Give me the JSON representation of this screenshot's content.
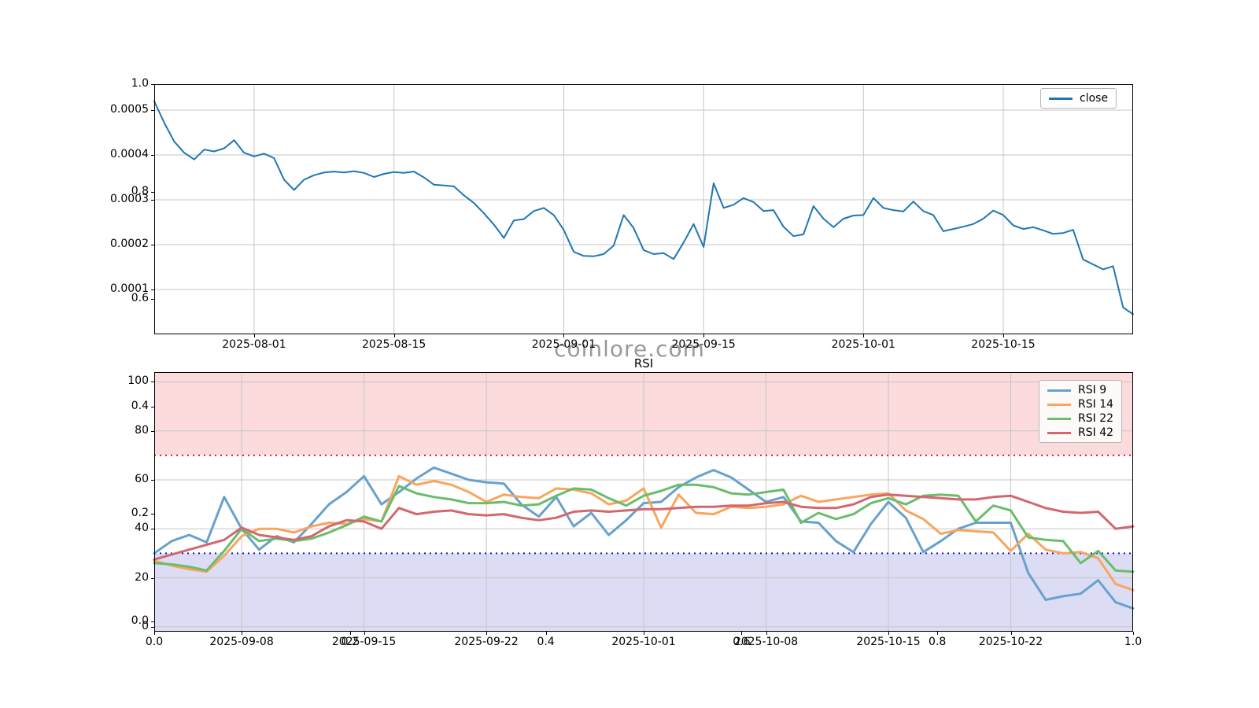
{
  "watermark": "coinlore.com",
  "colors": {
    "close": "#1f77b4",
    "rsi9": "#68a1cc",
    "rsi14": "#f8a55f",
    "rsi22": "#69bd6b",
    "rsi42": "#d2686e",
    "overbought_line": "#dc143c",
    "oversold_line": "#1414c8",
    "overbought_band": "#fbdbdb",
    "oversold_band": "#dddcf5",
    "grid": "#c6c6c6",
    "watermark_color": "#808080"
  },
  "overlay_axis": {
    "xticks": [
      "0.0",
      "0.2",
      "0.4",
      "0.6",
      "0.8",
      "1.0"
    ],
    "yticks": [
      "1.0",
      "0.8",
      "0.6",
      "0.4",
      "0.2",
      "0.0"
    ]
  },
  "chart_data": [
    {
      "type": "line",
      "title": "",
      "legend_position": "upper right",
      "grid": true,
      "ylim": [
        0,
        0.000558
      ],
      "yticks": [
        {
          "label": "0.0001",
          "v": 0.0001
        },
        {
          "label": "0.0002",
          "v": 0.0002
        },
        {
          "label": "0.0003",
          "v": 0.0003
        },
        {
          "label": "0.0004",
          "v": 0.0004
        },
        {
          "label": "0.0005",
          "v": 0.0005
        }
      ],
      "xticks": [
        {
          "label": "2025-08-01",
          "i": 10
        },
        {
          "label": "2025-08-15",
          "i": 24
        },
        {
          "label": "2025-09-01",
          "i": 41
        },
        {
          "label": "2025-09-15",
          "i": 55
        },
        {
          "label": "2025-10-01",
          "i": 71
        },
        {
          "label": "2025-10-15",
          "i": 85
        }
      ],
      "dates": [
        "2025-07-22",
        "2025-07-23",
        "2025-07-24",
        "2025-07-25",
        "2025-07-26",
        "2025-07-27",
        "2025-07-28",
        "2025-07-29",
        "2025-07-30",
        "2025-07-31",
        "2025-08-01",
        "2025-08-02",
        "2025-08-03",
        "2025-08-04",
        "2025-08-05",
        "2025-08-06",
        "2025-08-07",
        "2025-08-08",
        "2025-08-09",
        "2025-08-10",
        "2025-08-11",
        "2025-08-12",
        "2025-08-13",
        "2025-08-14",
        "2025-08-15",
        "2025-08-16",
        "2025-08-17",
        "2025-08-18",
        "2025-08-19",
        "2025-08-20",
        "2025-08-21",
        "2025-08-22",
        "2025-08-23",
        "2025-08-24",
        "2025-08-25",
        "2025-08-26",
        "2025-08-27",
        "2025-08-28",
        "2025-08-29",
        "2025-08-30",
        "2025-08-31",
        "2025-09-01",
        "2025-09-02",
        "2025-09-03",
        "2025-09-04",
        "2025-09-05",
        "2025-09-06",
        "2025-09-07",
        "2025-09-08",
        "2025-09-09",
        "2025-09-10",
        "2025-09-11",
        "2025-09-12",
        "2025-09-13",
        "2025-09-14",
        "2025-09-15",
        "2025-09-16",
        "2025-09-17",
        "2025-09-18",
        "2025-09-19",
        "2025-09-20",
        "2025-09-21",
        "2025-09-22",
        "2025-09-23",
        "2025-09-24",
        "2025-09-25",
        "2025-09-26",
        "2025-09-27",
        "2025-09-28",
        "2025-09-29",
        "2025-09-30",
        "2025-10-01",
        "2025-10-02",
        "2025-10-03",
        "2025-10-04",
        "2025-10-05",
        "2025-10-06",
        "2025-10-07",
        "2025-10-08",
        "2025-10-09",
        "2025-10-10",
        "2025-10-11",
        "2025-10-12",
        "2025-10-13",
        "2025-10-14",
        "2025-10-15",
        "2025-10-16",
        "2025-10-17",
        "2025-10-18",
        "2025-10-19",
        "2025-10-20",
        "2025-10-21",
        "2025-10-22",
        "2025-10-23",
        "2025-10-24",
        "2025-10-25",
        "2025-10-26",
        "2025-10-27",
        "2025-10-28"
      ],
      "series": [
        {
          "name": "close",
          "color": "#1f77b4",
          "width": 2,
          "values": [
            0.00052,
            0.000472,
            0.00043,
            0.000405,
            0.00039,
            0.000412,
            0.000408,
            0.000415,
            0.000433,
            0.000405,
            0.000397,
            0.000403,
            0.000393,
            0.000345,
            0.000322,
            0.000345,
            0.000355,
            0.000361,
            0.000363,
            0.000361,
            0.000364,
            0.00036,
            0.000351,
            0.000358,
            0.000362,
            0.00036,
            0.000363,
            0.00035,
            0.000334,
            0.000332,
            0.00033,
            0.00031,
            0.000293,
            0.00027,
            0.000245,
            0.000215,
            0.000254,
            0.000257,
            0.000275,
            0.000282,
            0.000266,
            0.000233,
            0.000184,
            0.000175,
            0.000174,
            0.000179,
            0.000198,
            0.000266,
            0.000237,
            0.000188,
            0.000179,
            0.000181,
            0.000168,
            0.000205,
            0.000246,
            0.000195,
            0.000337,
            0.000282,
            0.000289,
            0.000304,
            0.000295,
            0.000275,
            0.000277,
            0.00024,
            0.000219,
            0.000223,
            0.000286,
            0.000258,
            0.000239,
            0.000258,
            0.000265,
            0.000266,
            0.000304,
            0.000282,
            0.000277,
            0.000274,
            0.000296,
            0.000275,
            0.000266,
            0.00023,
            0.000235,
            0.00024,
            0.000246,
            0.000258,
            0.000276,
            0.000266,
            0.000243,
            0.000235,
            0.000239,
            0.000232,
            0.000224,
            0.000226,
            0.000233,
            0.000167,
            0.000156,
            0.000145,
            0.000152,
            6e-05,
            4.5e-05
          ]
        }
      ]
    },
    {
      "type": "line",
      "title": "RSI",
      "legend_position": "upper right",
      "grid": true,
      "ylim": [
        -2,
        104
      ],
      "hlines": [
        {
          "v": 70,
          "style": "dotted",
          "color": "#dc143c",
          "meaning": "overbought"
        },
        {
          "v": 30,
          "style": "dotted",
          "color": "#1414c8",
          "meaning": "oversold"
        }
      ],
      "bands": [
        {
          "from": 70,
          "to": 104,
          "color": "#fbdbdb"
        },
        {
          "from": -2,
          "to": 30,
          "color": "#dddcf5"
        }
      ],
      "yticks": [
        {
          "label": "0",
          "v": 0
        },
        {
          "label": "20",
          "v": 20
        },
        {
          "label": "40",
          "v": 40
        },
        {
          "label": "60",
          "v": 60
        },
        {
          "label": "80",
          "v": 80
        },
        {
          "label": "100",
          "v": 100
        }
      ],
      "xticks": [
        {
          "label": "2025-09-08",
          "i": 5
        },
        {
          "label": "2025-09-15",
          "i": 12
        },
        {
          "label": "2025-09-22",
          "i": 19
        },
        {
          "label": "2025-10-01",
          "i": 28
        },
        {
          "label": "2025-10-08",
          "i": 35
        },
        {
          "label": "2025-10-15",
          "i": 42
        },
        {
          "label": "2025-10-22",
          "i": 49
        }
      ],
      "dates": [
        "2025-09-03",
        "2025-09-04",
        "2025-09-05",
        "2025-09-06",
        "2025-09-07",
        "2025-09-08",
        "2025-09-09",
        "2025-09-10",
        "2025-09-11",
        "2025-09-12",
        "2025-09-13",
        "2025-09-14",
        "2025-09-15",
        "2025-09-16",
        "2025-09-17",
        "2025-09-18",
        "2025-09-19",
        "2025-09-20",
        "2025-09-21",
        "2025-09-22",
        "2025-09-23",
        "2025-09-24",
        "2025-09-25",
        "2025-09-26",
        "2025-09-27",
        "2025-09-28",
        "2025-09-29",
        "2025-09-30",
        "2025-10-01",
        "2025-10-02",
        "2025-10-03",
        "2025-10-04",
        "2025-10-05",
        "2025-10-06",
        "2025-10-07",
        "2025-10-08",
        "2025-10-09",
        "2025-10-10",
        "2025-10-11",
        "2025-10-12",
        "2025-10-13",
        "2025-10-14",
        "2025-10-15",
        "2025-10-16",
        "2025-10-17",
        "2025-10-18",
        "2025-10-19",
        "2025-10-20",
        "2025-10-21",
        "2025-10-22",
        "2025-10-23",
        "2025-10-24",
        "2025-10-25",
        "2025-10-26",
        "2025-10-27",
        "2025-10-28",
        "2025-10-29"
      ],
      "series": [
        {
          "name": "RSI 9",
          "color": "#68a1cc",
          "width": 3,
          "values": [
            30,
            35,
            37.5,
            34.5,
            53,
            40,
            31.5,
            37,
            34.5,
            42,
            50,
            55,
            61.5,
            50,
            55,
            60.5,
            65,
            62.5,
            60,
            59,
            58.5,
            50,
            45,
            53,
            41,
            46.5,
            37.5,
            43.5,
            50.5,
            51,
            57,
            61,
            64,
            61,
            56,
            51,
            53,
            43,
            42.5,
            35,
            30.5,
            42,
            51,
            44.5,
            30.5,
            35,
            40,
            42.5,
            42.5,
            42.5,
            22,
            11,
            12.5,
            13.5,
            19,
            10,
            7.5
          ]
        },
        {
          "name": "RSI 14",
          "color": "#f8a55f",
          "width": 3,
          "values": [
            27,
            25,
            23.5,
            22.5,
            29,
            37,
            40,
            40,
            38.5,
            41,
            42.5,
            42,
            44,
            43,
            61.5,
            58,
            59.5,
            58,
            55,
            51,
            54,
            53,
            52.5,
            56.5,
            56,
            54.5,
            50,
            51.5,
            56.5,
            40.5,
            54,
            46.5,
            46,
            49,
            48.5,
            49,
            50,
            53.5,
            51,
            52,
            53,
            54,
            54.5,
            47.5,
            44,
            38,
            39.5,
            39,
            38.5,
            31,
            38,
            31.5,
            30,
            30.5,
            28,
            17.5,
            15
          ]
        },
        {
          "name": "RSI 22",
          "color": "#69bd6b",
          "width": 3,
          "values": [
            26,
            25.5,
            24.5,
            23,
            31,
            40,
            35,
            36,
            35,
            36,
            38.5,
            41.5,
            45,
            43,
            57.5,
            54.5,
            53,
            52,
            50.5,
            50.5,
            51,
            49.5,
            50,
            53.5,
            56.5,
            56,
            52.5,
            49.5,
            53.5,
            55.5,
            58,
            58,
            57,
            54.5,
            54,
            55,
            56,
            42.5,
            46.5,
            44,
            46,
            50.5,
            52.5,
            50,
            53.5,
            54,
            53.5,
            43,
            49.5,
            47.5,
            36.5,
            35.5,
            35,
            26,
            31,
            23,
            22.5
          ]
        },
        {
          "name": "RSI 42",
          "color": "#d2686e",
          "width": 3,
          "values": [
            27.5,
            29.5,
            31.5,
            33.5,
            35.5,
            40.5,
            37.5,
            36.5,
            35.5,
            37,
            41,
            43.5,
            43,
            40,
            48.5,
            46,
            47,
            47.5,
            46,
            45.5,
            46,
            44.5,
            43.5,
            44.5,
            47,
            47.5,
            47,
            47.5,
            48,
            48,
            48.5,
            49,
            49,
            49.5,
            49.5,
            50.5,
            51,
            49,
            48.5,
            48.5,
            50,
            53,
            54,
            53.5,
            53,
            52.5,
            52,
            52,
            53,
            53.5,
            51,
            48.5,
            47,
            46.5,
            47,
            40,
            41
          ]
        }
      ]
    }
  ]
}
